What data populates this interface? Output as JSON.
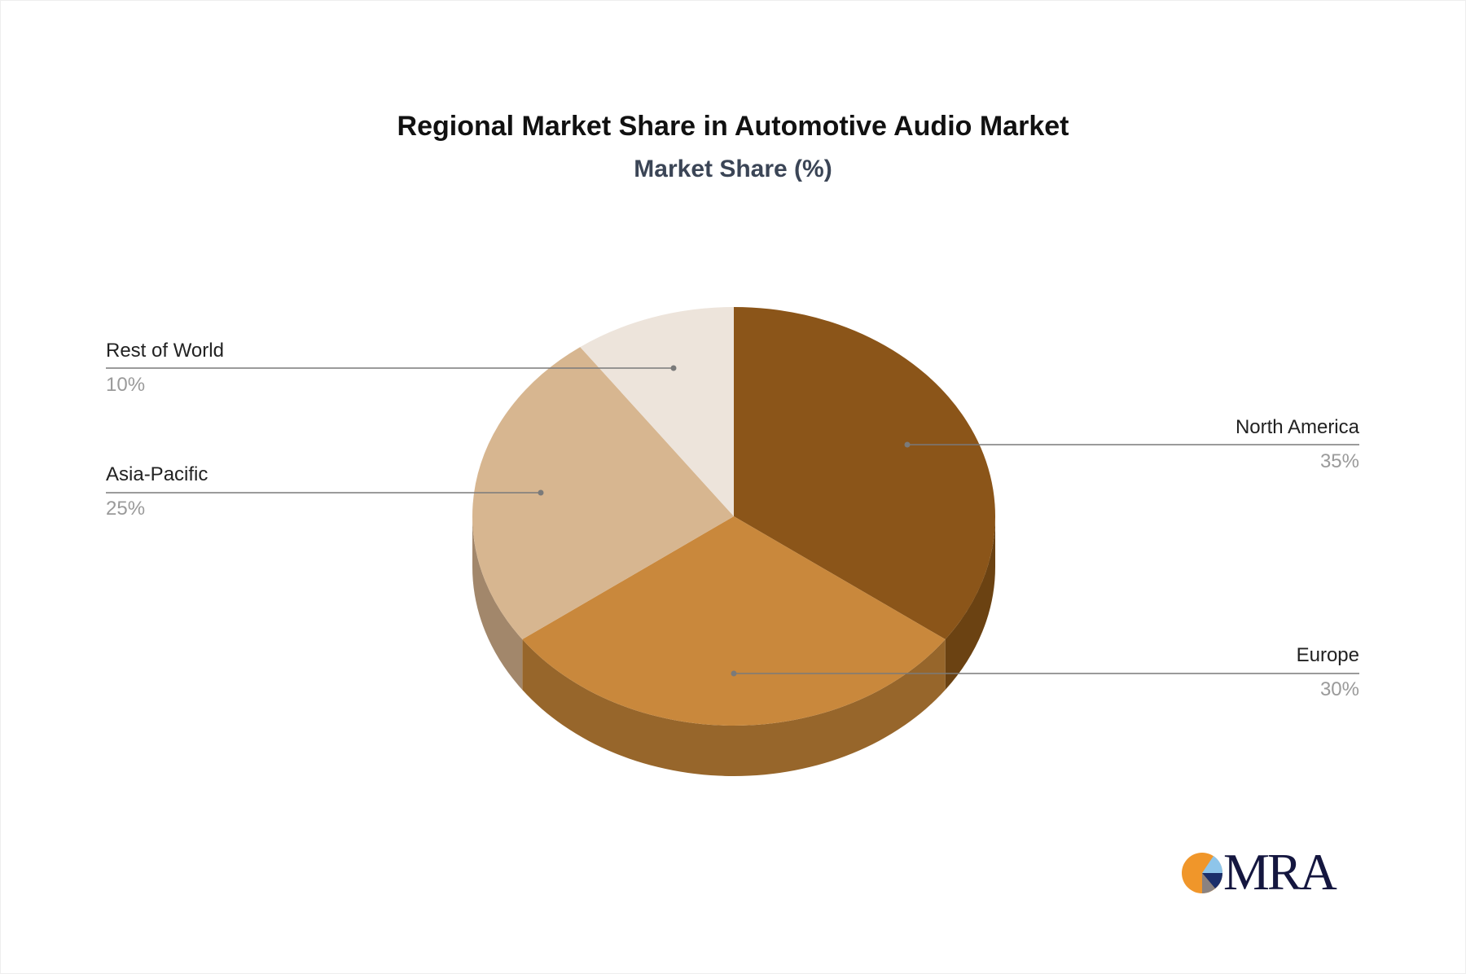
{
  "chart_data": {
    "type": "pie",
    "title": "Regional Market Share in Automotive Audio Market",
    "subtitle": "Market Share (%)",
    "categories": [
      "North America",
      "Europe",
      "Asia-Pacific",
      "Rest of World"
    ],
    "values": [
      35,
      30,
      25,
      10
    ],
    "labels": [
      "35%",
      "30%",
      "25%",
      "10%"
    ],
    "colors": [
      "#8b5519",
      "#c9883c",
      "#d7b690",
      "#ede4db"
    ],
    "side_colors": [
      "#6b4212",
      "#97662b",
      "#a2876b",
      "#c9bfb4"
    ],
    "style": "3d"
  },
  "logo": {
    "text": "MRA"
  }
}
